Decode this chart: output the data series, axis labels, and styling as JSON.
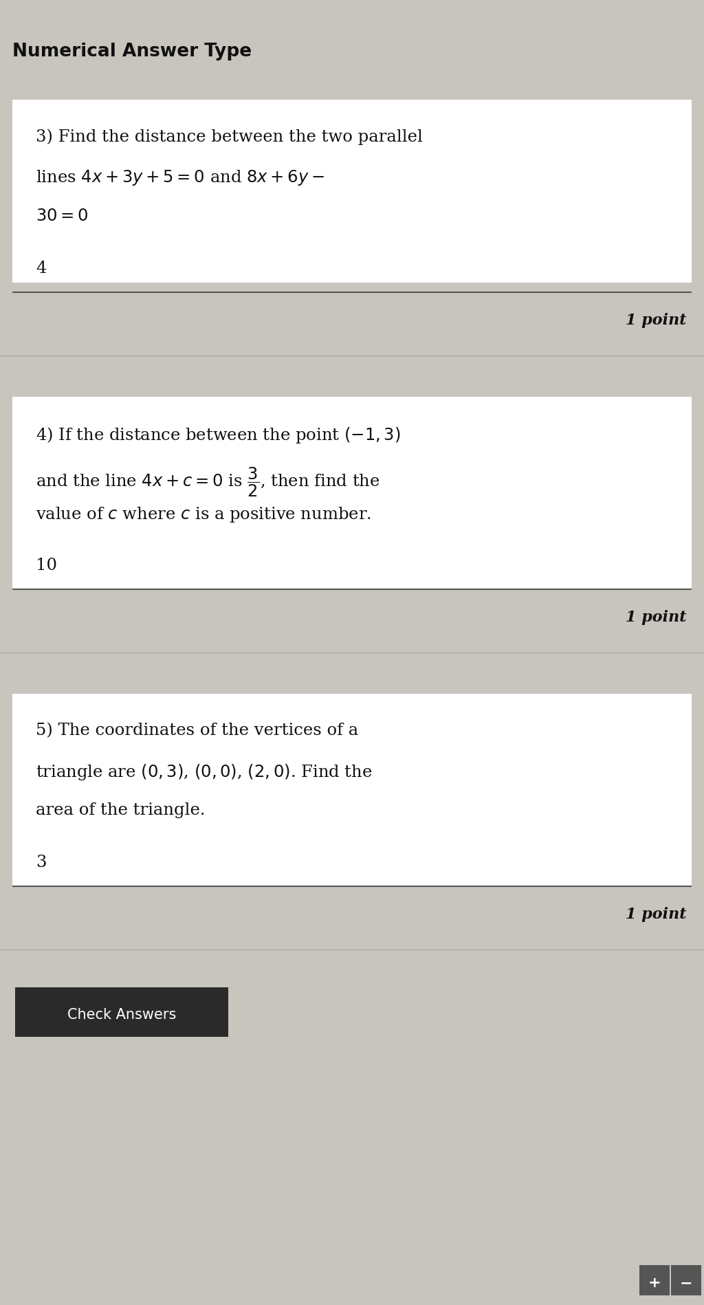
{
  "title": "Numerical Answer Type",
  "page_bg": "#c8c4be",
  "card_bg": "#ffffff",
  "panel_bg": "#c8c4be",
  "title_color": "#111111",
  "text_color": "#111111",
  "line_color": "#555555",
  "point_color": "#111111",
  "button_bg": "#2a2a2a",
  "button_text": "Check Answers",
  "button_text_color": "#ffffff",
  "q3_lines": [
    "3) Find the distance between the two parallel",
    "lines $4x + 3y + 5 = 0$ and $8x + 6y -$",
    "$30 = 0$"
  ],
  "q3_answer": "4",
  "q4_lines": [
    "4) If the distance between the point $(-1, 3)$",
    "and the line $4x + c = 0$ is $\\dfrac{3}{2}$, then find the",
    "value of $c$ where $c$ is a positive number."
  ],
  "q4_answer": "10",
  "q5_lines": [
    "5) The coordinates of the vertices of a",
    "triangle are $(0, 3)$, $(0, 0)$, $(2, 0)$. Find the",
    "area of the triangle."
  ],
  "q5_answer": "3",
  "points_label": "1 point"
}
